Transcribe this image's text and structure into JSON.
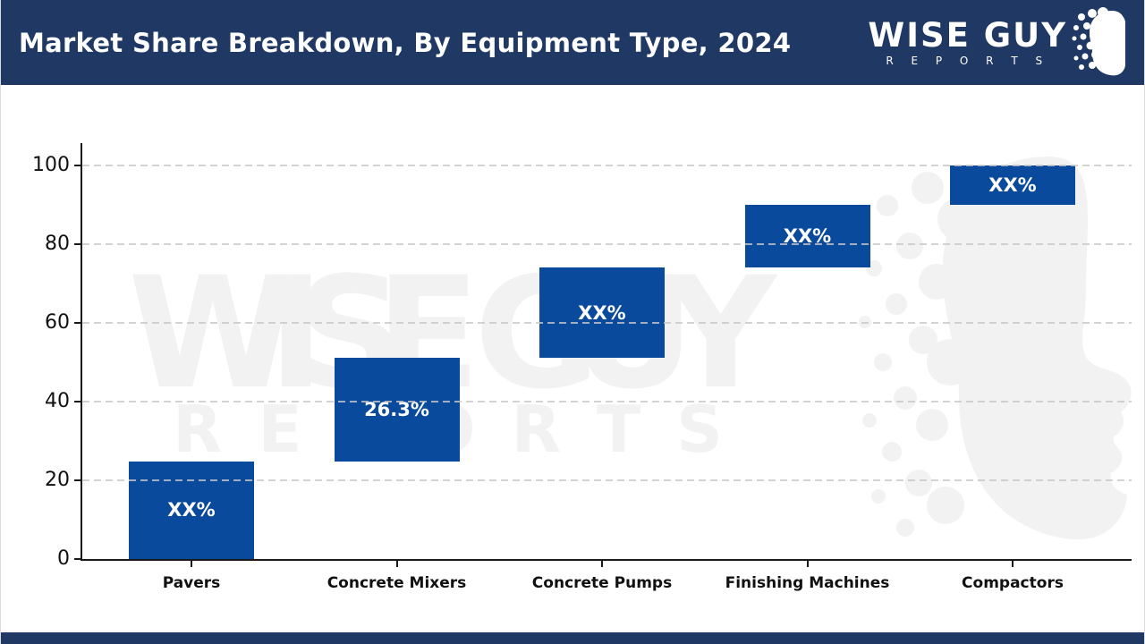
{
  "header": {
    "title": "Market Share Breakdown, By Equipment Type, 2024",
    "logo_line1": "WISE GUY",
    "logo_line2": "R E P O R T S"
  },
  "watermark": {
    "line1": "WISE GUY",
    "line2": "R E P O R T S"
  },
  "colors": {
    "header_bg": "#1f3864",
    "bar": "#0a4a9d",
    "grid": "#d4d4d4",
    "axis": "#1a1a1a",
    "bar_label_text": "#ffffff",
    "watermark": "#f2f2f2"
  },
  "chart_data": {
    "type": "bar",
    "subtype": "waterfall",
    "title": "Market Share Breakdown, By Equipment Type, 2024",
    "categories": [
      "Pavers",
      "Concrete Mixers",
      "Concrete Pumps",
      "Finishing Machines",
      "Compactors"
    ],
    "values": [
      24.8,
      26.3,
      22.9,
      16.0,
      10.0
    ],
    "starts": [
      0,
      24.8,
      51.1,
      74.0,
      90.0
    ],
    "ends": [
      24.8,
      51.1,
      74.0,
      90.0,
      100.0
    ],
    "bar_labels": [
      "XX%",
      "26.3%",
      "XX%",
      "XX%",
      "XX%"
    ],
    "xlabel": "",
    "ylabel": "",
    "yticks": [
      0,
      20,
      40,
      60,
      80,
      100
    ],
    "ylim": [
      0,
      105.7
    ],
    "grid": "horizontal-dashed",
    "legend": "none",
    "bar_color": "#0a4a9d"
  }
}
